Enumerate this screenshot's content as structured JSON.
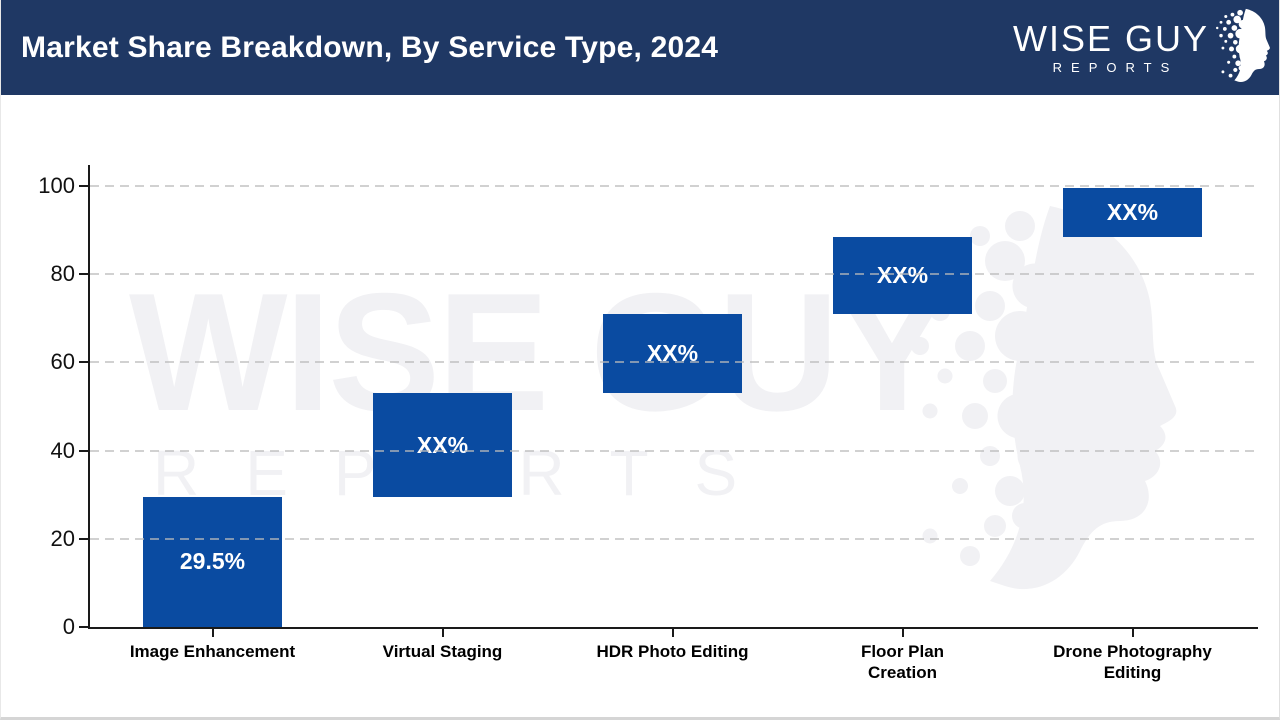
{
  "header": {
    "title": "Market Share Breakdown, By Service Type, 2024",
    "logo": {
      "line1": "WISE GUY",
      "line2": "REPORTS"
    }
  },
  "watermark": {
    "line1": "WISE GUY",
    "line2": "REPORTS"
  },
  "chart_data": {
    "type": "bar",
    "subtype": "waterfall",
    "title": "Market Share Breakdown, By Service Type, 2024",
    "xlabel": "",
    "ylabel": "",
    "ylim": [
      0,
      105
    ],
    "yticks": [
      0,
      20,
      40,
      60,
      80,
      100
    ],
    "grid": "horizontal dashed",
    "legend": "none",
    "bar_color": "#0a4ba1",
    "header_color": "#1f3864",
    "categories": [
      "Image Enhancement",
      "Virtual Staging",
      "HDR Photo Editing",
      "Floor Plan Creation",
      "Drone Photography Editing"
    ],
    "category_display_lines": [
      "Image Enhancement",
      "Virtual Staging",
      "HDR Photo Editing",
      "Floor Plan\nCreation",
      "Drone Photography\nEditing"
    ],
    "bar_value_labels": [
      "29.5%",
      "XX%",
      "XX%",
      "XX%",
      "XX%"
    ],
    "first_bar_value_pct": 29.5,
    "segments": [
      {
        "category": "Image Enhancement",
        "start": 0,
        "end": 29.5,
        "label": "29.5%"
      },
      {
        "category": "Virtual Staging",
        "start": 29.5,
        "end": 53.0,
        "label": "XX%"
      },
      {
        "category": "HDR Photo Editing",
        "start": 53.0,
        "end": 71.0,
        "label": "XX%"
      },
      {
        "category": "Floor Plan Creation",
        "start": 71.0,
        "end": 88.5,
        "label": "XX%"
      },
      {
        "category": "Drone Photography Editing",
        "start": 88.5,
        "end": 99.5,
        "label": "XX%"
      }
    ]
  }
}
